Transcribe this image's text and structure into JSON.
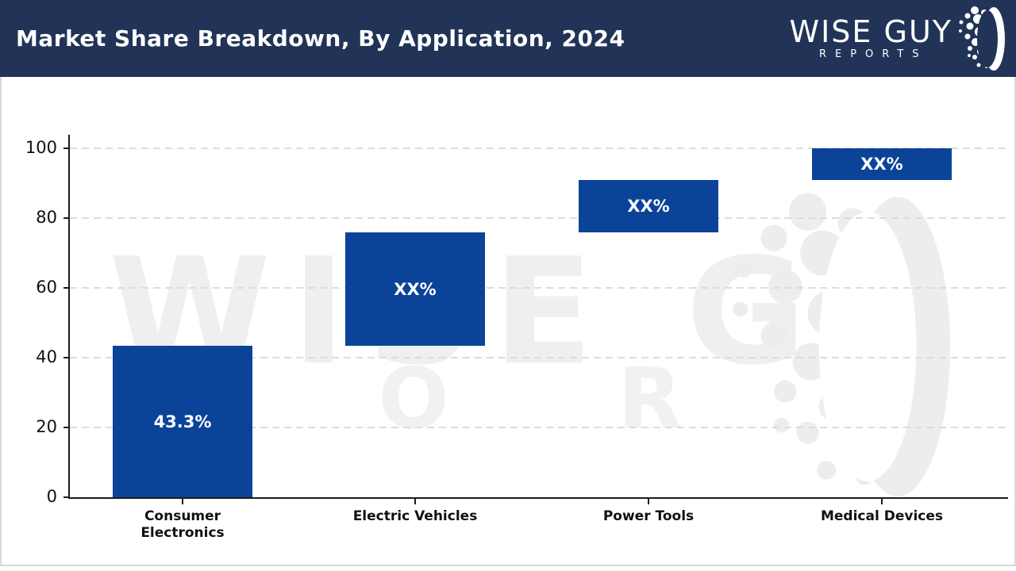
{
  "header": {
    "title": "Market Share Breakdown, By Application, 2024",
    "bg_color": "#213457",
    "logo": {
      "line1": "WISE GUY",
      "line2": "REPORTS"
    }
  },
  "watermark": {
    "line1": "WISE GU",
    "line2": "P O R T S"
  },
  "chart_data": {
    "type": "bar",
    "subtype": "waterfall",
    "title": "Market Share Breakdown, By Application, 2024",
    "categories": [
      "Consumer Electronics",
      "Electric Vehicles",
      "Power Tools",
      "Medical Devices"
    ],
    "tick_label_lines": [
      [
        "Consumer",
        "Electronics"
      ],
      [
        "Electric Vehicles"
      ],
      [
        "Power Tools"
      ],
      [
        "Medical Devices"
      ]
    ],
    "series": [
      {
        "name": "Market share (%)",
        "segments": [
          {
            "category": "Consumer Electronics",
            "start": 0,
            "end": 43.3,
            "label": "43.3%"
          },
          {
            "category": "Electric Vehicles",
            "start": 43.3,
            "end": 76,
            "label": "XX%"
          },
          {
            "category": "Power Tools",
            "start": 76,
            "end": 90.9,
            "label": "XX%"
          },
          {
            "category": "Medical Devices",
            "start": 90.9,
            "end": 100,
            "label": "XX%"
          }
        ]
      }
    ],
    "bar_color": "#0b4399",
    "ylim": [
      0,
      100
    ],
    "yticks": [
      0,
      20,
      40,
      60,
      80,
      100
    ],
    "ytick_labels": [
      "0",
      "20",
      "40",
      "60",
      "80",
      "100"
    ],
    "xlabel": "",
    "ylabel": "",
    "grid": "horizontal-dashed",
    "legend": "none"
  }
}
